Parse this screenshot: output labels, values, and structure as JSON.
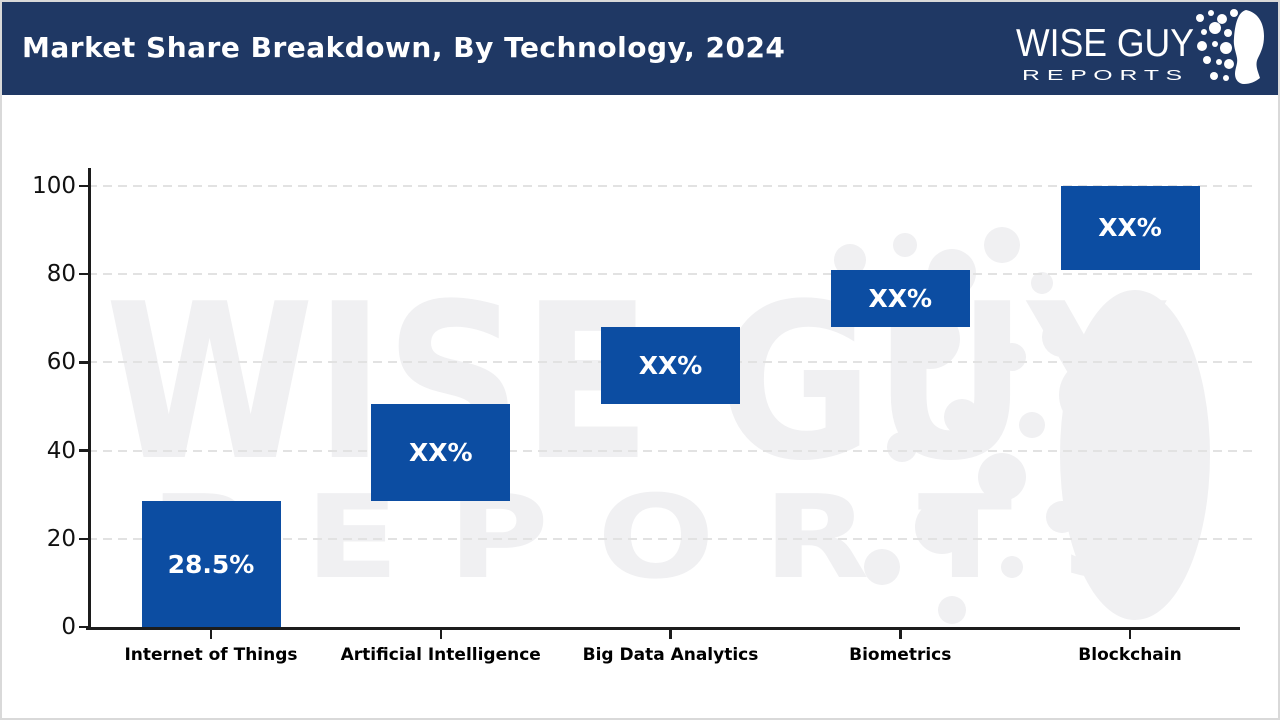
{
  "header": {
    "title": "Market Share Breakdown, By Technology, 2024",
    "logo": {
      "primary": "WISE GUY",
      "secondary": "R E P O R T S"
    }
  },
  "watermark": {
    "primary": "WISE GUY",
    "secondary": "R E P O R T S"
  },
  "colors": {
    "header_bg": "#1f3864",
    "bar": "#0c4da2",
    "bar_label": "#ffffff",
    "grid": "#e2e2e2",
    "axis": "#1c1c1c",
    "watermark": "#f0f0f2"
  },
  "chart_data": {
    "type": "bar",
    "subtype": "waterfall",
    "title": "Market Share Breakdown, By Technology, 2024",
    "categories": [
      "Internet of Things",
      "Artificial Intelligence",
      "Big Data Analytics",
      "Biometrics",
      "Blockchain"
    ],
    "segments": [
      {
        "category": "Internet of Things",
        "start": 0,
        "end": 28.5,
        "label": "28.5%"
      },
      {
        "category": "Artificial Intelligence",
        "start": 28.5,
        "end": 50.5,
        "label": "XX%"
      },
      {
        "category": "Big Data Analytics",
        "start": 50.5,
        "end": 68,
        "label": "XX%"
      },
      {
        "category": "Biometrics",
        "start": 68,
        "end": 81,
        "label": "XX%"
      },
      {
        "category": "Blockchain",
        "start": 81,
        "end": 100,
        "label": "XX%"
      }
    ],
    "yticks": [
      0,
      20,
      40,
      60,
      80,
      100
    ],
    "ylim": [
      0,
      100
    ],
    "grid": "horizontal-dashed",
    "legend": "none",
    "xlabel": "",
    "ylabel": ""
  }
}
